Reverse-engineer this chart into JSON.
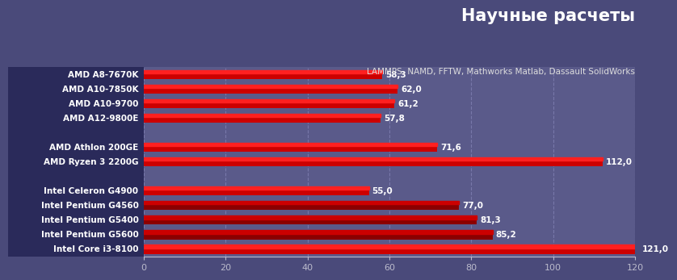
{
  "title": "Научные расчеты",
  "subtitle": "LAMMPS, NAMD, FFTW, Mathworks Matlab, Dassault SolidWorks",
  "categories": [
    "AMD A8-7670K",
    "AMD A10-7850K",
    "AMD A10-9700",
    "AMD A12-9800E",
    "",
    "AMD Athlon 200GE",
    "AMD Ryzen 3 2200G",
    "",
    "Intel Celeron G4900",
    "Intel Pentium G4560",
    "Intel Pentium G5400",
    "Intel Pentium G5600",
    "Intel Core i3-8100"
  ],
  "values": [
    58.3,
    62.0,
    61.2,
    57.8,
    null,
    71.6,
    112.0,
    null,
    55.0,
    77.0,
    81.3,
    85.2,
    121.0
  ],
  "bar_top_colors": [
    "#cc0000",
    "#cc0000",
    "#cc0000",
    "#cc0000",
    null,
    "#cc0000",
    "#cc0000",
    null,
    "#cc0000",
    "#8b0000",
    "#8b0000",
    "#8b0000",
    "#cc0000"
  ],
  "bar_bot_colors": [
    "#ff2020",
    "#ff2020",
    "#ff2020",
    "#ff2020",
    null,
    "#ff2020",
    "#ff2020",
    null,
    "#ff2020",
    "#cc0000",
    "#cc0000",
    "#cc0000",
    "#ff2020"
  ],
  "fig_bg_color": "#4a4a7a",
  "header_bg_color": "#4a4a7a",
  "label_bg_color": "#2a2a5a",
  "plot_bg_color": "#5a5a8a",
  "xlim": [
    0,
    120
  ],
  "xticks": [
    0,
    20,
    40,
    60,
    80,
    100,
    120
  ],
  "grid_color": "#7878aa",
  "title_color": "#ffffff",
  "subtitle_color": "#dddddd",
  "label_color": "#ffffff",
  "value_color": "#ffffff",
  "tick_color": "#bbbbcc"
}
